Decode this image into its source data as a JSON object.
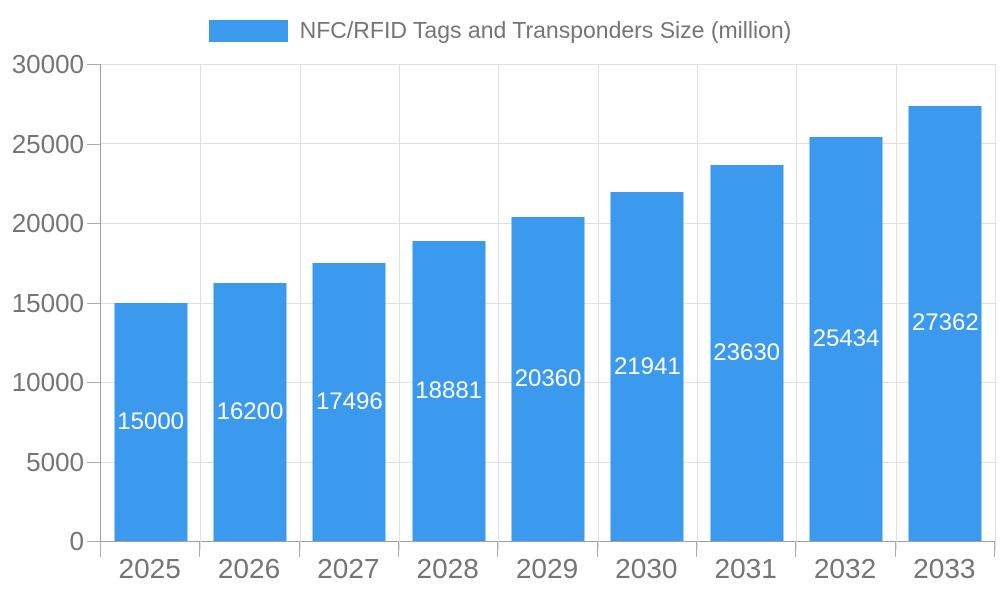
{
  "legend": {
    "label": "NFC/RFID Tags and Transponders Size (million)"
  },
  "colors": {
    "bar": "#3B99EE",
    "bar_label_text": "#FFFFFF",
    "axis_line": "#9E9E9E",
    "tick_line": "#ADADAD",
    "grid_line": "#E0E0E0",
    "label_text": "#757575",
    "background": "#FFFFFF"
  },
  "chart_data": {
    "type": "bar",
    "title": "NFC/RFID Tags and Transponders Size (million)",
    "xlabel": "",
    "ylabel": "",
    "categories": [
      "2025",
      "2026",
      "2027",
      "2028",
      "2029",
      "2030",
      "2031",
      "2032",
      "2033"
    ],
    "series": [
      {
        "name": "NFC/RFID Tags and Transponders Size (million)",
        "values": [
          15000,
          16200,
          17496,
          18881,
          20360,
          21941,
          23630,
          25434,
          27362
        ]
      }
    ],
    "ylim": [
      0,
      30000
    ],
    "y_ticks": [
      0,
      5000,
      10000,
      15000,
      20000,
      25000,
      30000
    ],
    "grid": true,
    "legend_position": "top",
    "bar_label_position": "inside-center"
  }
}
